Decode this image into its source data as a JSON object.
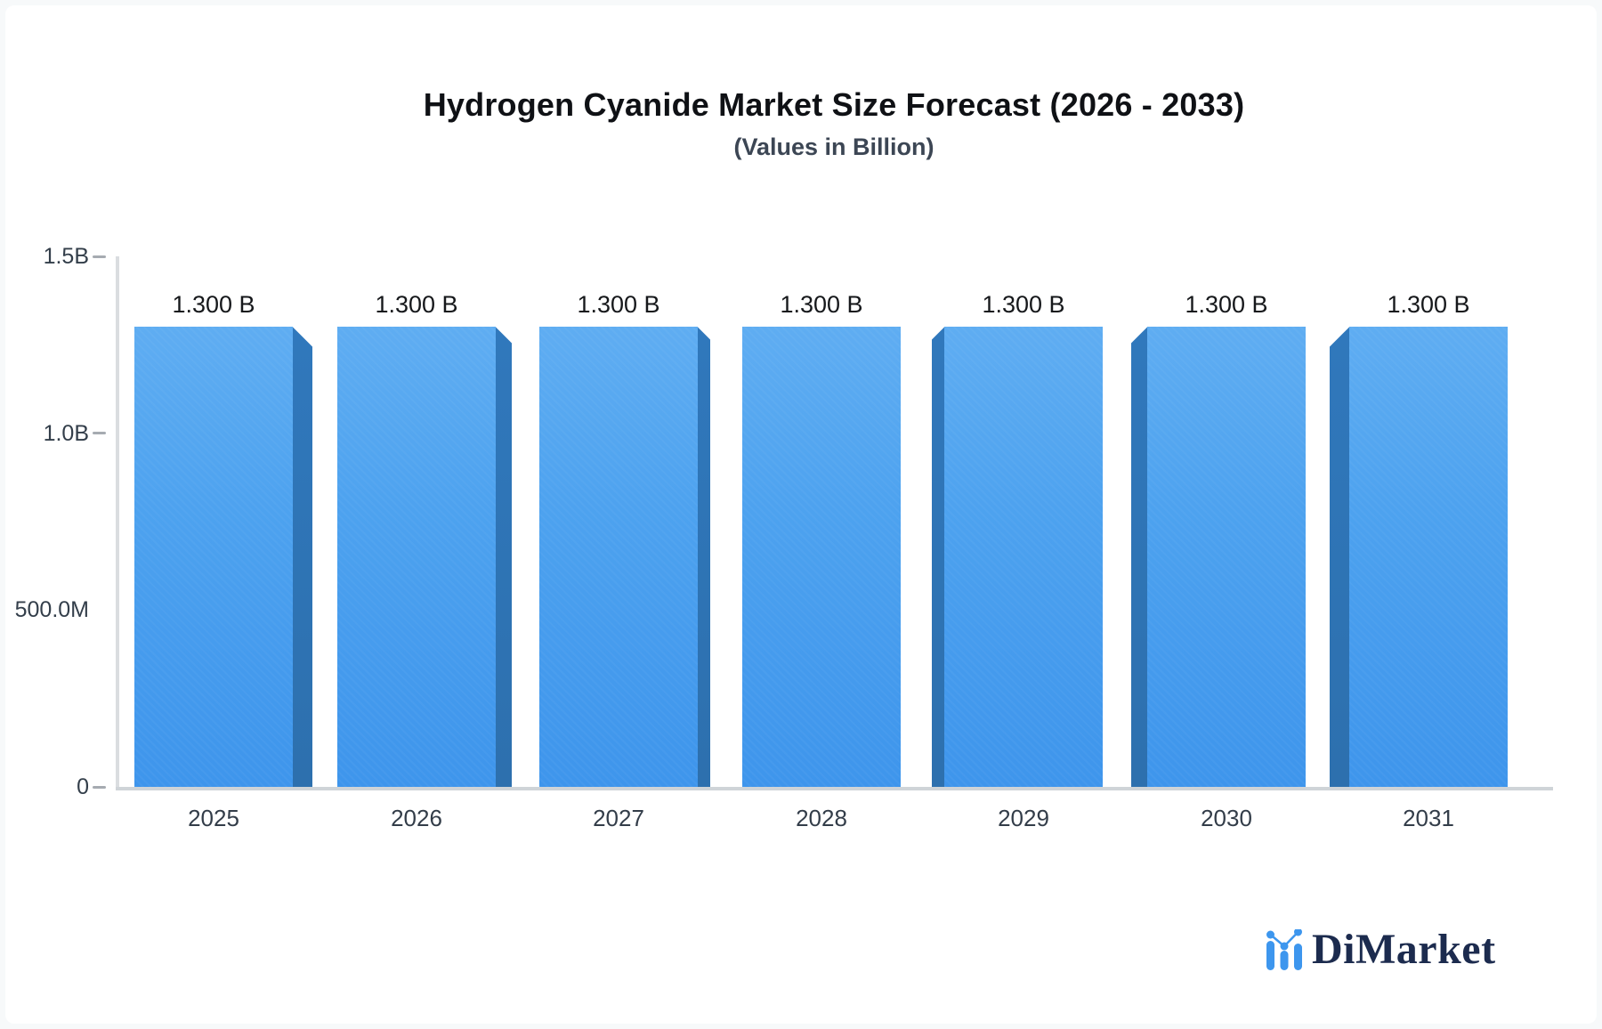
{
  "page": {
    "background_color": "#f7f9fa",
    "card_color": "#ffffff"
  },
  "chart_data": {
    "type": "bar",
    "title": "Hydrogen Cyanide Market Size Forecast (2026 - 2033)",
    "subtitle": "(Values in Billion)",
    "categories": [
      "2025",
      "2026",
      "2027",
      "2028",
      "2029",
      "2030",
      "2031"
    ],
    "values": [
      1.3,
      1.3,
      1.3,
      1.3,
      1.3,
      1.3,
      1.3
    ],
    "bar_value_labels": [
      "1.300 B",
      "1.300 B",
      "1.300 B",
      "1.300 B",
      "1.300 B",
      "1.300 B",
      "1.300 B"
    ],
    "unit": "Billion",
    "ylim": [
      0,
      1.5
    ],
    "y_ticks": [
      {
        "label": "1.5B",
        "value": 1.5,
        "dash": true
      },
      {
        "label": "1.0B",
        "value": 1.0,
        "dash": true
      },
      {
        "label": "500.0M",
        "value": 0.5,
        "dash": false
      },
      {
        "label": "0",
        "value": 0,
        "dash": true
      }
    ],
    "grid": false,
    "legend": false,
    "bar_color_top": "#5fadf2",
    "bar_color_bottom": "#3e95ec",
    "bar_side_color": "#2e75b8"
  },
  "branding": {
    "logo_text": "DiMarket",
    "logo_icon": "bar-chart-trend-icon",
    "logo_text_color": "#1c2b4e",
    "logo_icon_color": "#3d96ee"
  }
}
